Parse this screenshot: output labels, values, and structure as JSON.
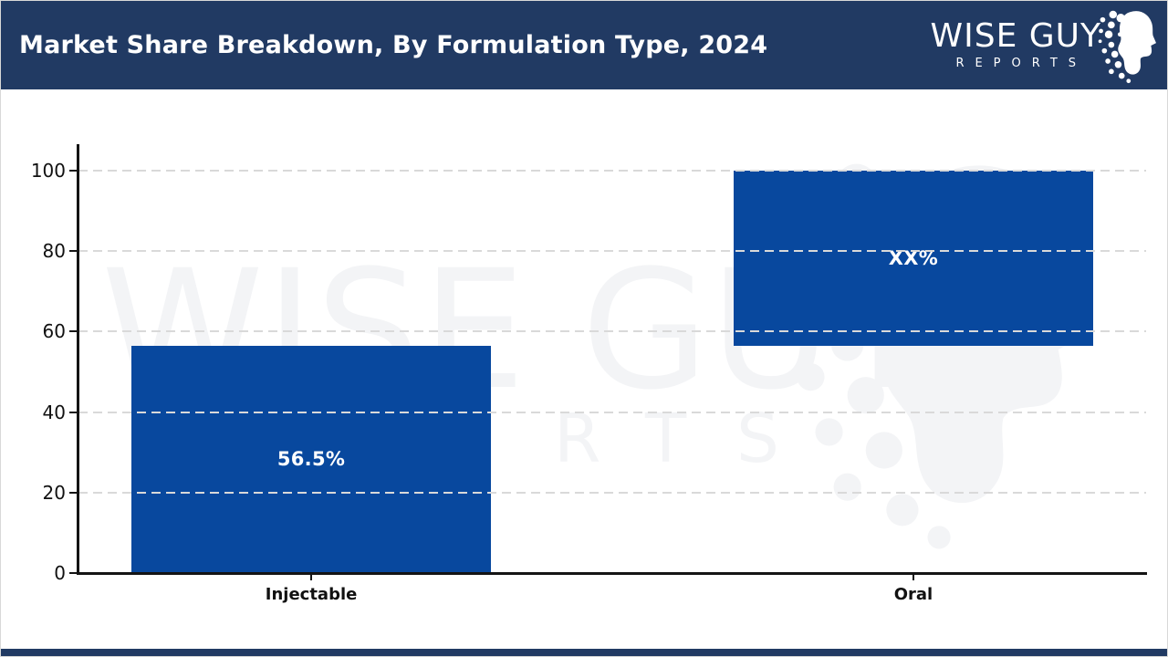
{
  "header": {
    "title": "Market Share Breakdown, By Formulation Type, 2024",
    "background_color": "#213A63",
    "logo": {
      "wordmark": "WISE GUY",
      "subtitle": "REPORTS",
      "icon": "face-profile-dots-icon"
    }
  },
  "chart_data": {
    "type": "bar",
    "title": "Market Share Breakdown, By Formulation Type, 2024",
    "categories": [
      "Injectable",
      "Oral"
    ],
    "bars": [
      {
        "category": "Injectable",
        "value_label": "56.5%",
        "from": 0,
        "to": 56.5
      },
      {
        "category": "Oral",
        "value_label": "XX%",
        "from": 56.5,
        "to": 100
      }
    ],
    "xlabel": "",
    "ylabel": "",
    "yticks": [
      0,
      20,
      40,
      60,
      80,
      100
    ],
    "ylim": [
      0,
      107
    ],
    "grid": "horizontal-dashed",
    "gridline_color": "#d9d9d9",
    "bar_color": "#08489E",
    "value_label_color": "#ffffff",
    "legend": "none",
    "layout": {
      "bar_centers_frac": [
        0.218,
        0.782
      ],
      "bar_width_frac": 0.337
    }
  },
  "watermark": {
    "wordmark": "WISE GUY",
    "letters": [
      "R",
      "T",
      "S"
    ]
  },
  "footer": {
    "color": "#213A63"
  }
}
